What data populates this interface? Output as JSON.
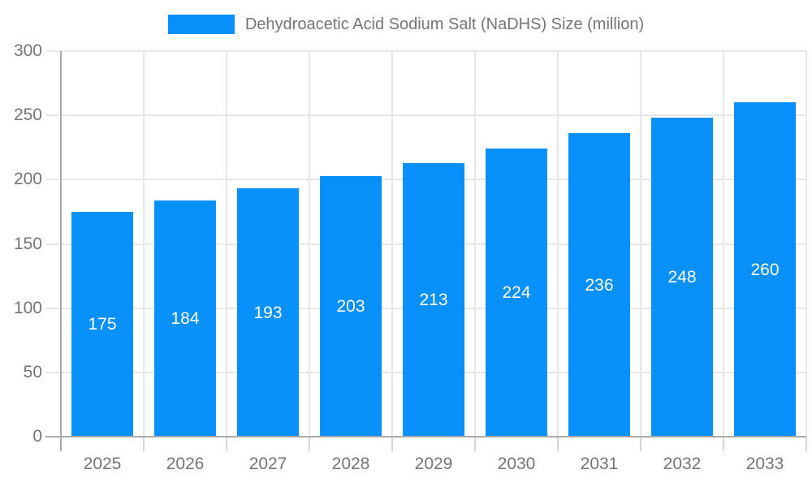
{
  "chart_data": {
    "type": "bar",
    "title": "Dehydroacetic Acid Sodium Salt (NaDHS) Size (million)",
    "legend_entries": [
      "Dehydroacetic Acid Sodium Salt (NaDHS) Size (million)"
    ],
    "legend_position": "top-center",
    "categories": [
      "2025",
      "2026",
      "2027",
      "2028",
      "2029",
      "2030",
      "2031",
      "2032",
      "2033"
    ],
    "series": [
      {
        "name": "Dehydroacetic Acid Sodium Salt (NaDHS) Size (million)",
        "values": [
          175,
          184,
          193,
          203,
          213,
          224,
          236,
          248,
          260
        ]
      }
    ],
    "value_labels_shown": true,
    "xlabel": "",
    "ylabel": "",
    "ylim": [
      0,
      300
    ],
    "yticks": [
      0,
      50,
      100,
      150,
      200,
      250,
      300
    ],
    "grid": true,
    "colors": {
      "bar": "#0890f9",
      "grid": "#e8e8e8",
      "axis": "#ababab",
      "tick": "#d6d6d6",
      "text": "#757575",
      "value_label": "#ffffff",
      "background": "#ffffff"
    }
  }
}
